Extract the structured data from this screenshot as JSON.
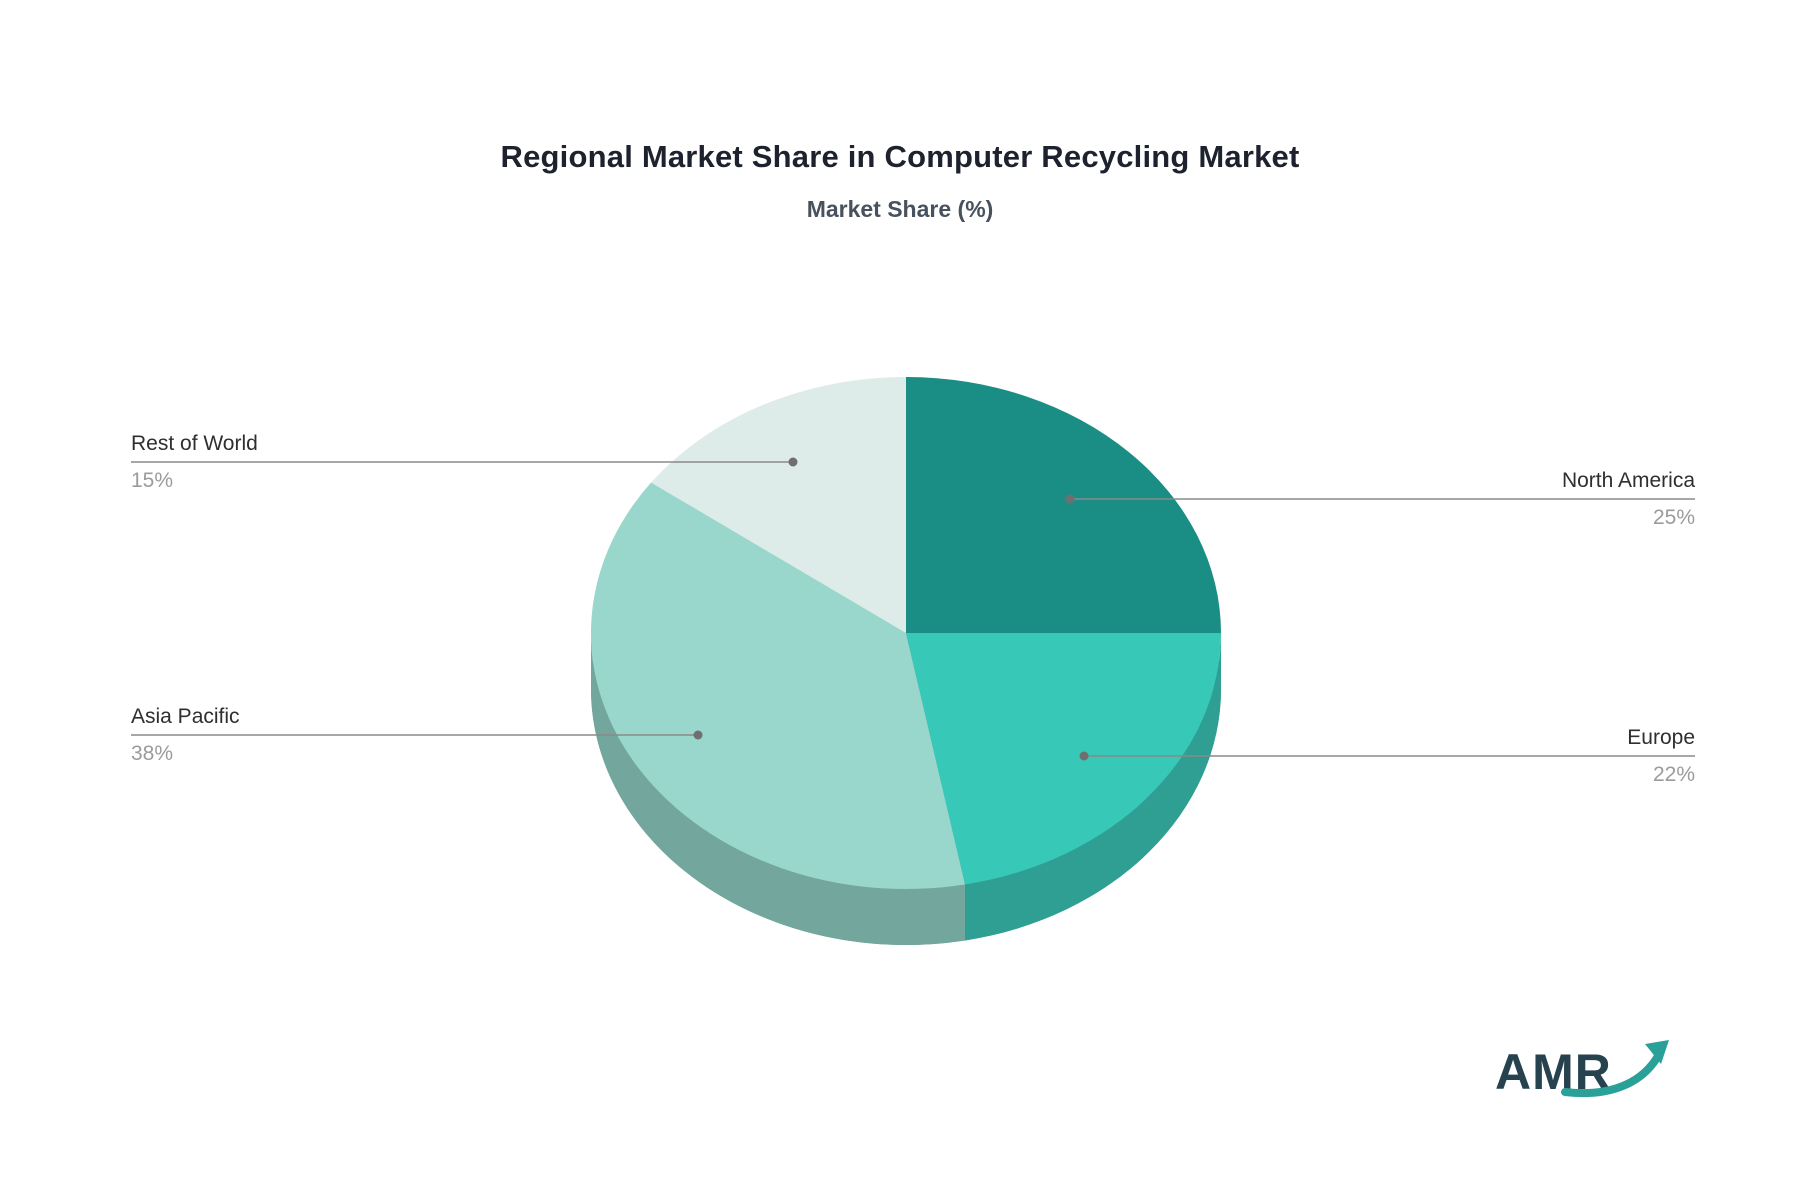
{
  "chart_data": {
    "type": "pie",
    "style": "3d",
    "title": "Regional Market Share in Computer Recycling Market",
    "subtitle": "Market Share (%)",
    "unit": "%",
    "legend_position": "none",
    "categories": [
      "North America",
      "Europe",
      "Asia Pacific",
      "Rest of World"
    ],
    "values": [
      25,
      22,
      38,
      15
    ],
    "slice_colors": [
      "#1A8E84",
      "#37C8B8",
      "#99D6CB",
      "#DEECE9"
    ],
    "side_colors": [
      "#14756D",
      "#2E9F92",
      "#73A69D",
      "#C4D8D3"
    ],
    "labels": [
      {
        "name": "North America",
        "value": "25%"
      },
      {
        "name": "Europe",
        "value": "22%"
      },
      {
        "name": "Asia Pacific",
        "value": "38%"
      },
      {
        "name": "Rest of World",
        "value": "15%"
      }
    ]
  },
  "colors": {
    "connector_line": "#8A8A8A",
    "connector_dot": "#6F6F6F",
    "label_text": "#2F2F2F",
    "value_text": "#9B9B9B",
    "logo_text": "#27424F",
    "logo_arrow": "#2AA198"
  },
  "logo": {
    "text": "AMR"
  }
}
